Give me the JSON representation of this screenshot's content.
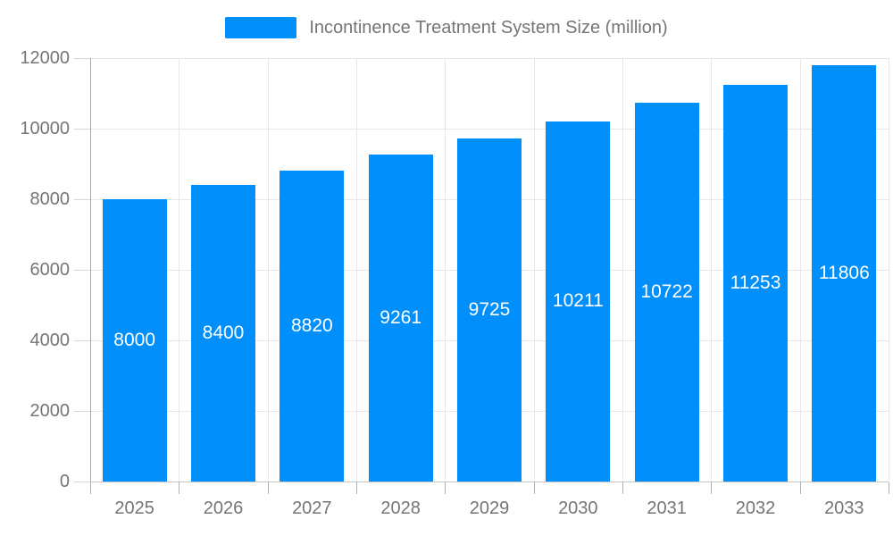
{
  "legend": {
    "label": "Incontinence Treatment System Size (million)",
    "swatch_color": "#008FFB"
  },
  "chart_data": {
    "type": "bar",
    "title": "",
    "series_name": "Incontinence Treatment System Size (million)",
    "categories": [
      "2025",
      "2026",
      "2027",
      "2028",
      "2029",
      "2030",
      "2031",
      "2032",
      "2033"
    ],
    "values": [
      8000,
      8400,
      8820,
      9261,
      9725,
      10211,
      10722,
      11253,
      11806
    ],
    "yticks": [
      0,
      2000,
      4000,
      6000,
      8000,
      10000,
      12000
    ],
    "ylim": [
      0,
      12000
    ],
    "xlabel": "",
    "ylabel": "",
    "grid": true,
    "legend_position": "top",
    "value_labels": "inside-center",
    "colors": {
      "bar": "#008FFB",
      "grid": "#e7e7e7",
      "axis_y": "#a8a8a8",
      "axis_x": "#c4c4c4",
      "tick": "#b0b0b0",
      "ytick_dash": "#d6d6d6",
      "label": "#757575",
      "value_label": "#ffffff",
      "background": "#ffffff"
    }
  }
}
